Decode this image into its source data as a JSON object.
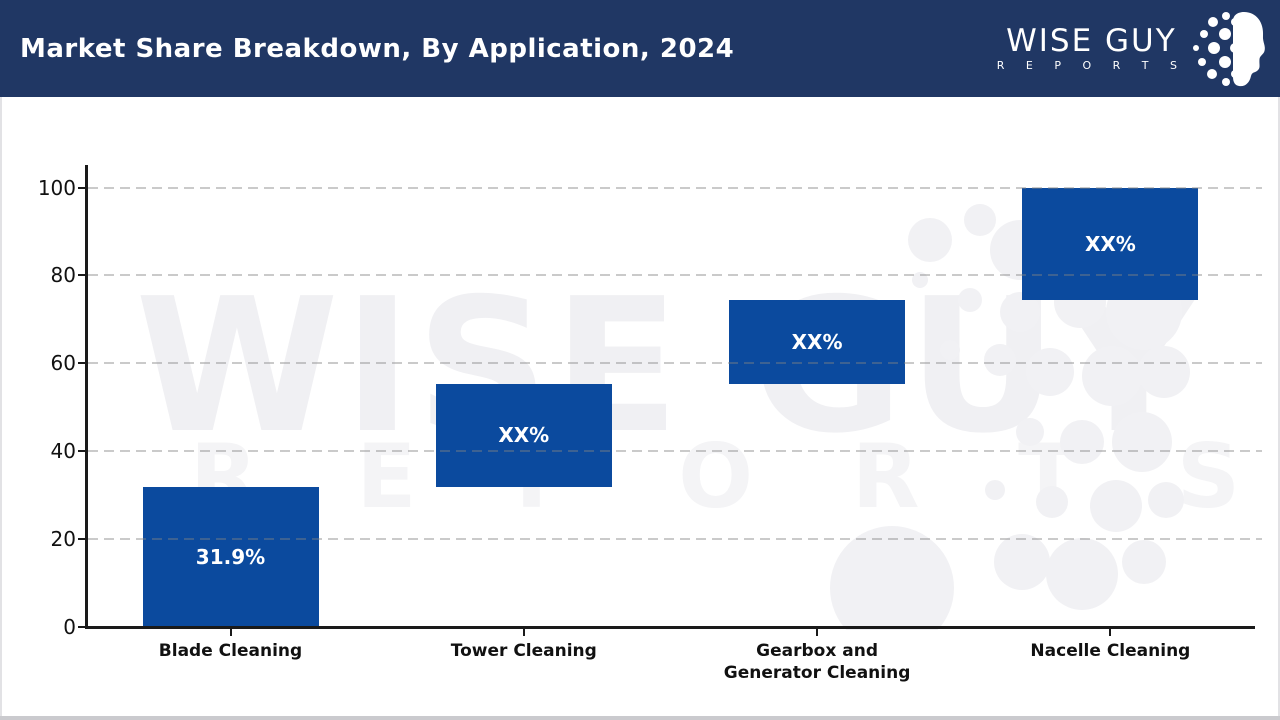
{
  "header": {
    "title": "Market Share Breakdown, By Application, 2024",
    "logo": {
      "line1": "WISE GUY",
      "line2": "R E P O R T S"
    }
  },
  "watermark": {
    "line1": "WISE GUY",
    "line2": "R E P O R T S"
  },
  "colors": {
    "header_bg": "#203764",
    "bar_blue": "#0b4a9e",
    "axis": "#1a1a1a",
    "grid_gray": "#cfcfcf",
    "watermark_gray": "#f0f0f3"
  },
  "chart_data": {
    "type": "bar",
    "subtype": "waterfall-floating-bars",
    "title": "Market Share Breakdown, By Application, 2024",
    "categories": [
      [
        "Blade Cleaning"
      ],
      [
        "Tower Cleaning"
      ],
      [
        "Gearbox and",
        "Generator Cleaning"
      ],
      [
        "Nacelle Cleaning"
      ]
    ],
    "segments": [
      {
        "category": "Blade Cleaning",
        "start": 0,
        "end": 31.9,
        "label": "31.9%"
      },
      {
        "category": "Tower Cleaning",
        "start": 31.9,
        "end": 55.4,
        "label": "XX%"
      },
      {
        "category": "Gearbox and Generator Cleaning",
        "start": 55.4,
        "end": 74.5,
        "label": "XX%"
      },
      {
        "category": "Nacelle Cleaning",
        "start": 74.5,
        "end": 100,
        "label": "XX%"
      }
    ],
    "yticks": [
      0,
      20,
      40,
      60,
      80,
      100
    ],
    "ylim": [
      0,
      105
    ],
    "xlabel": "",
    "ylabel": "",
    "grid": "dashed-horizontal",
    "legend": "none",
    "bar_color": "#0b4a9e"
  }
}
